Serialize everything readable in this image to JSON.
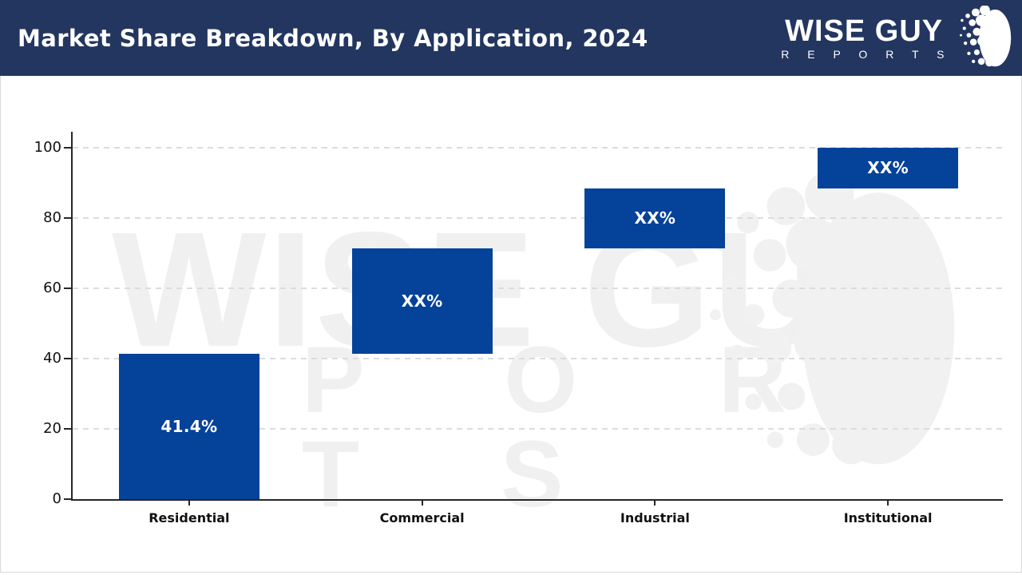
{
  "header": {
    "title": "Market Share Breakdown, By Application, 2024",
    "logo_line1": "WISE GUY",
    "logo_line2": "R E P O R T S"
  },
  "watermark": {
    "wise": "WISE GU",
    "y": "Y",
    "ports": "P O R T S"
  },
  "theme": {
    "header_bg": "#22365F",
    "bar_color": "#05429A",
    "axis_color": "#262626",
    "grid_color": "#dcdcdc",
    "watermark_color": "#f0f0f1"
  },
  "chart_data": {
    "type": "bar",
    "subtype": "stacked-waterfall",
    "title": "Market Share Breakdown, By Application, 2024",
    "xlabel": "",
    "ylabel": "",
    "categories": [
      "Residential",
      "Commercial",
      "Industrial",
      "Institutional"
    ],
    "segments": [
      {
        "category": "Residential",
        "start": 0,
        "end": 41.4,
        "label": "41.4%"
      },
      {
        "category": "Commercial",
        "start": 41.4,
        "end": 71.4,
        "label": "XX%"
      },
      {
        "category": "Industrial",
        "start": 71.4,
        "end": 88.5,
        "label": "XX%"
      },
      {
        "category": "Institutional",
        "start": 88.5,
        "end": 100,
        "label": "XX%"
      }
    ],
    "yticks": [
      0,
      20,
      40,
      60,
      80,
      100
    ],
    "ylim": [
      0,
      105
    ],
    "grid": "dashed-horizontal",
    "legend": "none"
  }
}
